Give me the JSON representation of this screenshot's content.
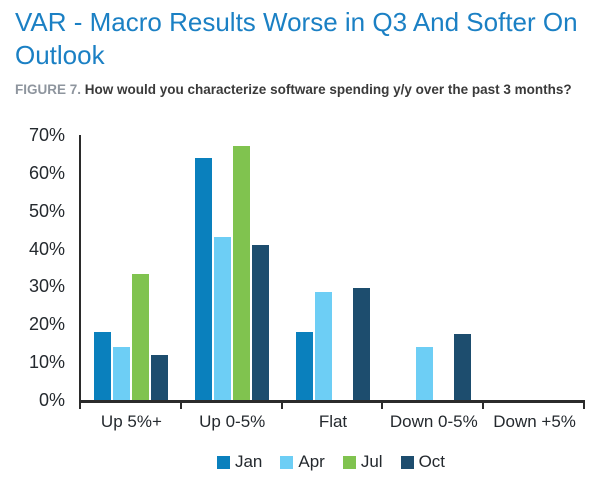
{
  "header": {
    "title": "VAR - Macro Results Worse in Q3 And Softer On Outlook"
  },
  "figure": {
    "label": "FIGURE 7.",
    "question": "How would you characterize software spending y/y over the past 3 months?"
  },
  "colors": {
    "title_blue": "#1b80c4",
    "figure_gray": "#8e959e",
    "text_dark": "#3a3a3a",
    "axis_dark": "#2b2b2b",
    "label_dark": "#24292e"
  },
  "chart_data": {
    "type": "bar",
    "title": "How would you characterize software spending y/y over the past 3 months?",
    "categories": [
      "Up 5%+",
      "Up 0-5%",
      "Flat",
      "Down 0-5%",
      "Down +5%"
    ],
    "series": [
      {
        "name": "Jan",
        "color": "#0a80bd",
        "values": [
          18,
          64,
          18,
          0,
          0
        ]
      },
      {
        "name": "Apr",
        "color": "#6dcef5",
        "values": [
          14,
          43,
          28.5,
          14,
          0
        ]
      },
      {
        "name": "Jul",
        "color": "#80c34f",
        "values": [
          33.3,
          67,
          0,
          0,
          0
        ]
      },
      {
        "name": "Oct",
        "color": "#1d4d6e",
        "values": [
          12,
          41,
          29.5,
          17.5,
          0
        ]
      }
    ],
    "xlabel": "",
    "ylabel": "",
    "ylim": [
      0,
      70
    ],
    "yticks": [
      0,
      10,
      20,
      30,
      40,
      50,
      60,
      70
    ],
    "ytick_suffix": "%",
    "grid": false,
    "legend_position": "bottom",
    "legend": [
      "Jan",
      "Apr",
      "Jul",
      "Oct"
    ]
  }
}
